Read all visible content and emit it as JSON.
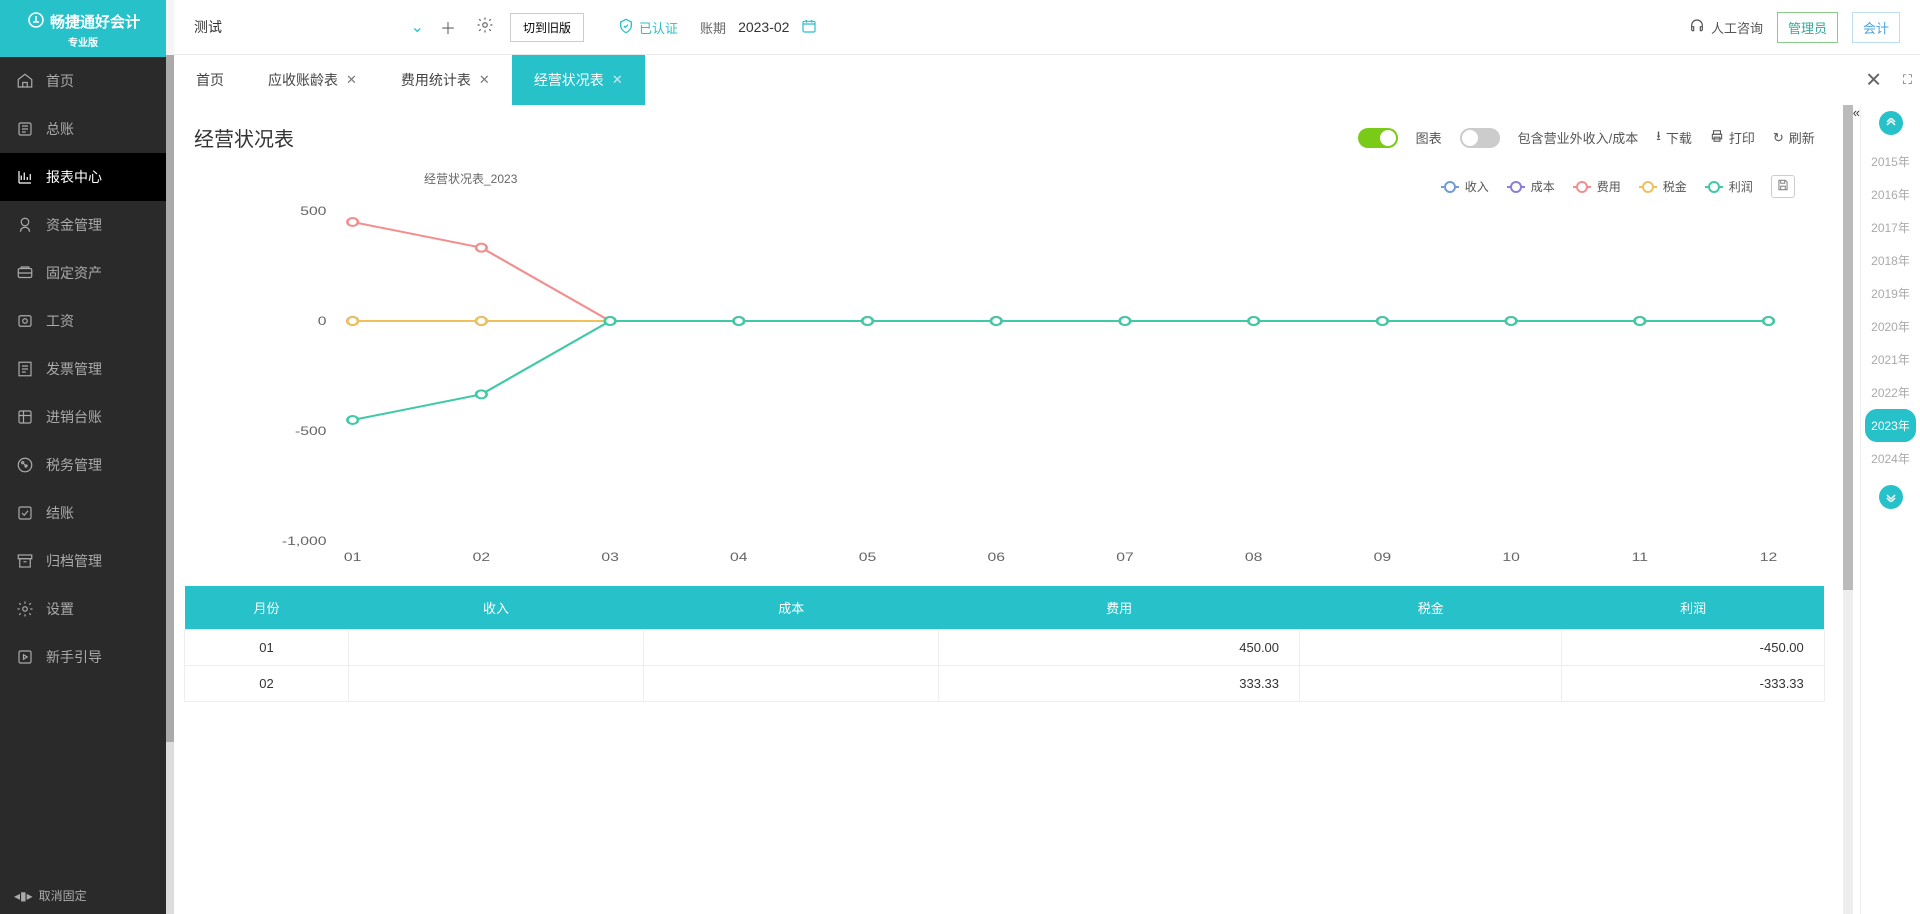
{
  "brand": {
    "name": "畅捷通好会计",
    "edition": "专业版"
  },
  "sidebar": {
    "items": [
      {
        "label": "首页",
        "icon": "home"
      },
      {
        "label": "总账",
        "icon": "ledger"
      },
      {
        "label": "报表中心",
        "icon": "report",
        "active": true
      },
      {
        "label": "资金管理",
        "icon": "fund"
      },
      {
        "label": "固定资产",
        "icon": "asset"
      },
      {
        "label": "工资",
        "icon": "salary"
      },
      {
        "label": "发票管理",
        "icon": "invoice"
      },
      {
        "label": "进销台账",
        "icon": "stock"
      },
      {
        "label": "税务管理",
        "icon": "tax"
      },
      {
        "label": "结账",
        "icon": "close-book"
      },
      {
        "label": "归档管理",
        "icon": "archive"
      },
      {
        "label": "设置",
        "icon": "settings"
      },
      {
        "label": "新手引导",
        "icon": "guide"
      }
    ],
    "footer": "取消固定"
  },
  "topbar": {
    "dropdown_value": "测试",
    "switch_old": "切到旧版",
    "verified": "已认证",
    "period_label": "账期",
    "period_value": "2023-02",
    "help": "人工咨询",
    "admin_btn": "管理员",
    "role_btn": "会计"
  },
  "tabs": [
    {
      "label": "首页",
      "closable": false
    },
    {
      "label": "应收账龄表",
      "closable": true
    },
    {
      "label": "费用统计表",
      "closable": true
    },
    {
      "label": "经营状况表",
      "closable": true,
      "active": true
    }
  ],
  "page": {
    "title": "经营状况表",
    "toggle_chart_label": "图表",
    "toggle_include_label": "包含营业外收入/成本",
    "download": "下载",
    "print": "打印",
    "refresh": "刷新"
  },
  "chart": {
    "type": "line",
    "title": "经营状况表_2023",
    "series": [
      {
        "name": "收入",
        "color": "#6f9bd8"
      },
      {
        "name": "成本",
        "color": "#8a7fd8"
      },
      {
        "name": "费用",
        "color": "#f38e8e"
      },
      {
        "name": "税金",
        "color": "#f0c05a"
      },
      {
        "name": "利润",
        "color": "#3fc9a7"
      }
    ],
    "x_labels": [
      "01",
      "02",
      "03",
      "04",
      "05",
      "06",
      "07",
      "08",
      "09",
      "10",
      "11",
      "12"
    ],
    "y_ticks": [
      -1000,
      -500,
      0,
      500
    ],
    "ylim": [
      -1000,
      500
    ],
    "data": {
      "收入": [
        0,
        0,
        0,
        0,
        0,
        0,
        0,
        0,
        0,
        0,
        0,
        0
      ],
      "成本": [
        0,
        0,
        0,
        0,
        0,
        0,
        0,
        0,
        0,
        0,
        0,
        0
      ],
      "费用": [
        450,
        333.33,
        0,
        0,
        0,
        0,
        0,
        0,
        0,
        0,
        0,
        0
      ],
      "税金": [
        0,
        0,
        0,
        0,
        0,
        0,
        0,
        0,
        0,
        0,
        0,
        0
      ],
      "利润": [
        -450,
        -333.33,
        0,
        0,
        0,
        0,
        0,
        0,
        0,
        0,
        0,
        0
      ]
    },
    "marker": {
      "radius": 4,
      "stroke_width": 2,
      "fill": "#ffffff"
    },
    "line_width": 2,
    "grid_color": "#e9e9e9",
    "background": "#ffffff"
  },
  "table": {
    "columns": [
      "月份",
      "收入",
      "成本",
      "费用",
      "税金",
      "利润"
    ],
    "col_widths": [
      "10%",
      "18%",
      "18%",
      "22%",
      "16%",
      "16%"
    ],
    "rows": [
      {
        "月份": "01",
        "收入": "",
        "成本": "",
        "费用": "450.00",
        "税金": "",
        "利润": "-450.00"
      },
      {
        "月份": "02",
        "收入": "",
        "成本": "",
        "费用": "333.33",
        "税金": "",
        "利润": "-333.33"
      }
    ]
  },
  "years": {
    "list": [
      "2015年",
      "2016年",
      "2017年",
      "2018年",
      "2019年",
      "2020年",
      "2021年",
      "2022年",
      "2023年",
      "2024年"
    ],
    "active": "2023年"
  }
}
